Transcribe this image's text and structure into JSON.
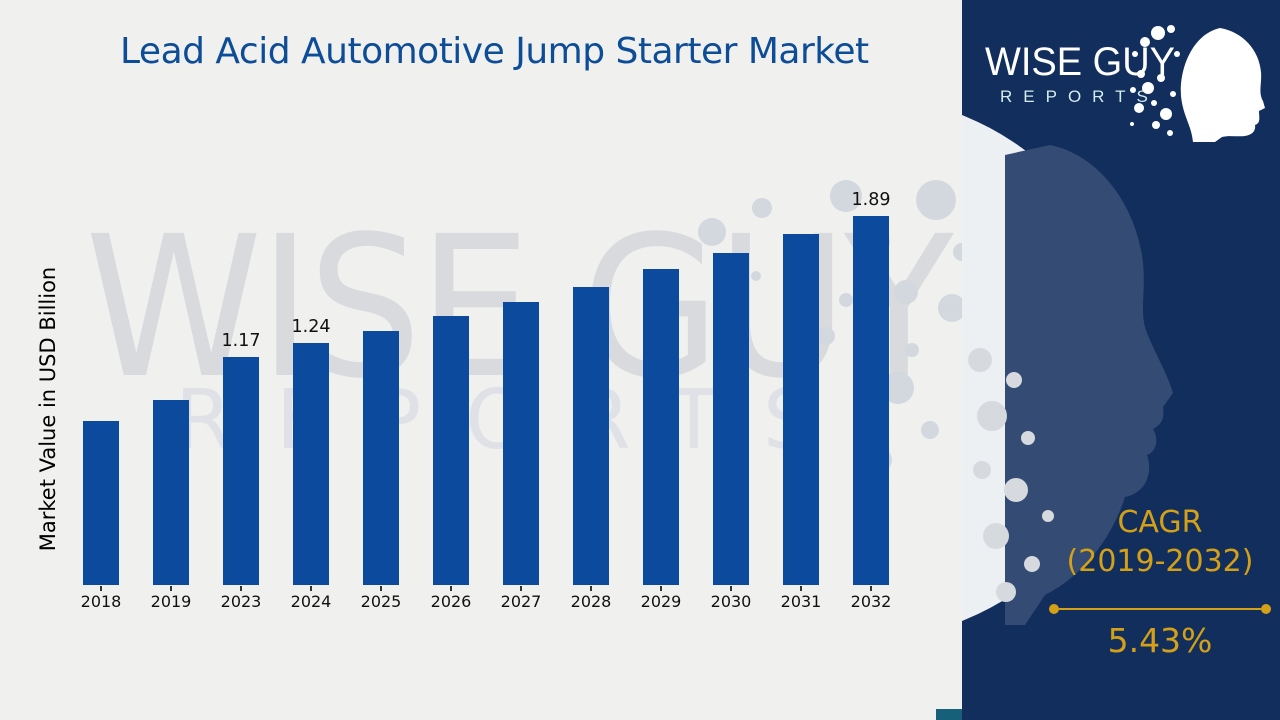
{
  "page": {
    "background": "#f0f0ee"
  },
  "header": {
    "title": "Lead Acid Automotive Jump Starter Market",
    "title_color": "#0d4c96"
  },
  "logo": {
    "brand": "WISE GUY",
    "sub": "REPORTS"
  },
  "watermark": {
    "brand": "WISE GUY",
    "sub": "REPORTS"
  },
  "chart_data": {
    "type": "bar",
    "title": "Lead Acid Automotive Jump Starter Market",
    "xlabel": "",
    "ylabel": "Market Value in USD Billion",
    "unit": "USD Billion",
    "categories": [
      "2018",
      "2019",
      "2023",
      "2024",
      "2025",
      "2026",
      "2027",
      "2028",
      "2029",
      "2030",
      "2031",
      "2032"
    ],
    "values": [
      0.84,
      0.95,
      1.17,
      1.24,
      1.3,
      1.38,
      1.45,
      1.53,
      1.62,
      1.7,
      1.8,
      1.89
    ],
    "bar_labels": [
      "",
      "",
      "1.17",
      "1.24",
      "",
      "",
      "",
      "",
      "",
      "",
      "",
      "1.89"
    ],
    "bar_color": "#0c4a9e",
    "ylim": [
      0,
      2.0
    ],
    "grid": false,
    "legend": null
  },
  "cagr": {
    "heading": "CAGR",
    "range": "(2019-2032)",
    "value": "5.43%",
    "color": "#d4a017"
  },
  "colors": {
    "bar": "#0c4a9e",
    "panel_navy": "#112e5c",
    "gold": "#d4a017",
    "background": "#f0f0ee",
    "watermark_text": "#d8dade",
    "watermark_face": "#344b73",
    "teal_accent": "#17607a"
  }
}
